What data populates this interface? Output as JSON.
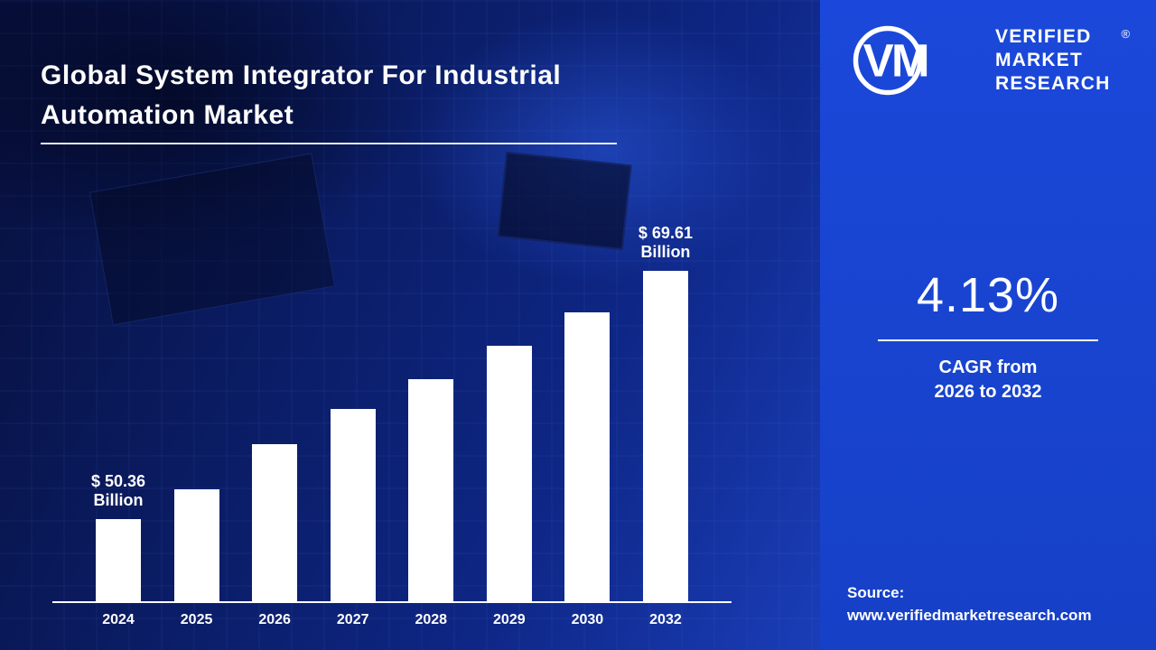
{
  "title": {
    "line1": "Global System Integrator For Industrial",
    "line2": "Automation Market"
  },
  "brand": {
    "monogram": "VM",
    "name_lines": [
      "VERIFIED",
      "MARKET",
      "RESEARCH"
    ],
    "registered": "®"
  },
  "stat": {
    "value": "4.13%",
    "caption_line1": "CAGR from",
    "caption_line2": "2026 to 2032"
  },
  "source": {
    "label": "Source:",
    "url": "www.verifiedmarketresearch.com"
  },
  "colors": {
    "right_panel": "#1843cd",
    "background": "#081445",
    "bar": "#ffffff",
    "text": "#ffffff"
  },
  "chart_data": {
    "type": "bar",
    "title": "Global System Integrator For Industrial Automation Market",
    "unit": "USD Billion",
    "xlabel": "",
    "ylabel": "",
    "categories": [
      "2024",
      "2025",
      "2026",
      "2027",
      "2028",
      "2029",
      "2030",
      "2032"
    ],
    "values": [
      50.36,
      52.7,
      56.2,
      58.9,
      61.2,
      63.8,
      66.4,
      69.61
    ],
    "ylim": [
      44,
      72
    ],
    "grid": false,
    "legend": false,
    "bar_color": "#ffffff",
    "annotations": [
      {
        "index": 0,
        "line1": "$ 50.36",
        "line2": "Billion"
      },
      {
        "index": 7,
        "line1": "$ 69.61",
        "line2": "Billion"
      }
    ]
  }
}
